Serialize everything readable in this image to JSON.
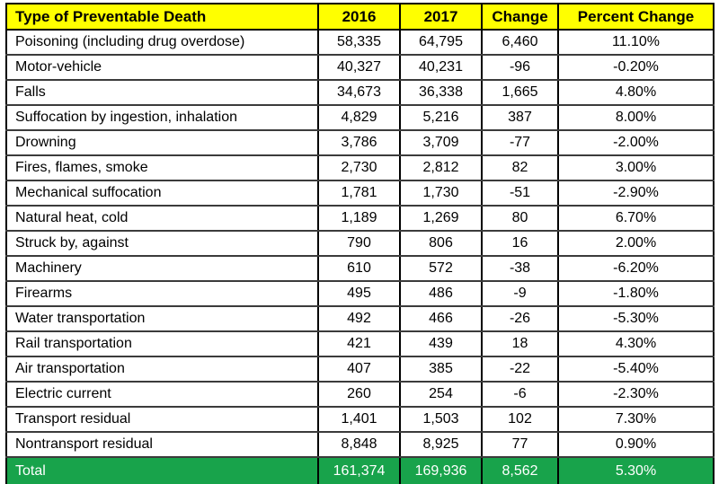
{
  "colors": {
    "header_bg": "#FFFF00",
    "header_text": "#000000",
    "row_bg": "#FFFFFF",
    "row_text": "#000000",
    "total_bg": "#18A34B",
    "total_text": "#FFFFFF",
    "border": "#000000"
  },
  "chart_data": {
    "type": "table",
    "columns": [
      "Type of Preventable Death",
      "2016",
      "2017",
      "Change",
      "Percent Change"
    ],
    "rows": [
      [
        "Poisoning (including drug overdose)",
        "58,335",
        "64,795",
        "6,460",
        "11.10%"
      ],
      [
        "Motor-vehicle",
        "40,327",
        "40,231",
        "-96",
        "-0.20%"
      ],
      [
        "Falls",
        "34,673",
        "36,338",
        "1,665",
        "4.80%"
      ],
      [
        "Suffocation by ingestion, inhalation",
        "4,829",
        "5,216",
        "387",
        "8.00%"
      ],
      [
        "Drowning",
        "3,786",
        "3,709",
        "-77",
        "-2.00%"
      ],
      [
        "Fires, flames, smoke",
        "2,730",
        "2,812",
        "82",
        "3.00%"
      ],
      [
        "Mechanical suffocation",
        "1,781",
        "1,730",
        "-51",
        "-2.90%"
      ],
      [
        "Natural heat, cold",
        "1,189",
        "1,269",
        "80",
        "6.70%"
      ],
      [
        "Struck by, against",
        "790",
        "806",
        "16",
        "2.00%"
      ],
      [
        "Machinery",
        "610",
        "572",
        "-38",
        "-6.20%"
      ],
      [
        "Firearms",
        "495",
        "486",
        "-9",
        "-1.80%"
      ],
      [
        "Water transportation",
        "492",
        "466",
        "-26",
        "-5.30%"
      ],
      [
        "Rail transportation",
        "421",
        "439",
        "18",
        "4.30%"
      ],
      [
        "Air transportation",
        "407",
        "385",
        "-22",
        "-5.40%"
      ],
      [
        "Electric current",
        "260",
        "254",
        "-6",
        "-2.30%"
      ],
      [
        "Transport residual",
        "1,401",
        "1,503",
        "102",
        "7.30%"
      ],
      [
        "Nontransport residual",
        "8,848",
        "8,925",
        "77",
        "0.90%"
      ]
    ],
    "total_row": [
      "Total",
      "161,374",
      "169,936",
      "8,562",
      "5.30%"
    ]
  }
}
